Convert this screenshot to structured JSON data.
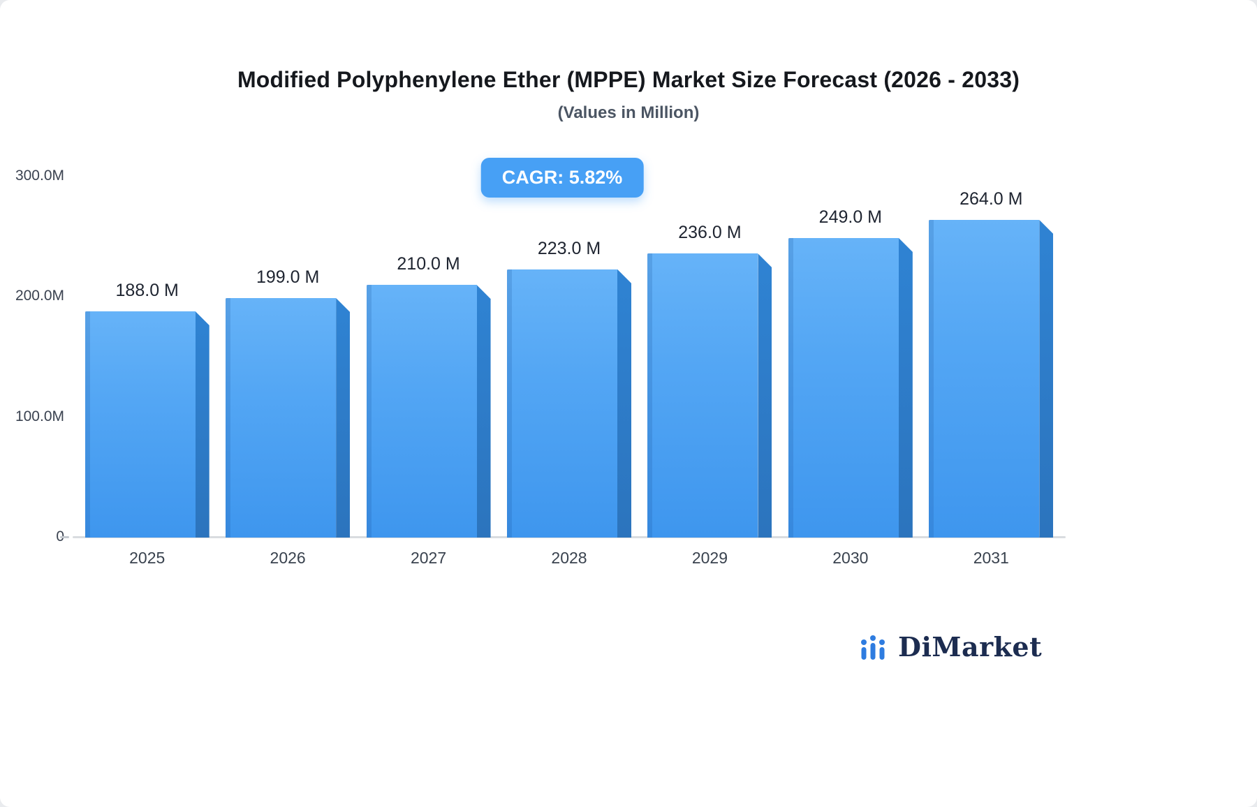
{
  "header": {
    "title": "Modified Polyphenylene Ether (MPPE) Market Size Forecast (2026 - 2033)",
    "subtitle": "(Values in Million)"
  },
  "badge": {
    "label": "CAGR: 5.82%",
    "background": "#47a0f5",
    "text_color": "#ffffff"
  },
  "chart_data": {
    "type": "bar",
    "title": "Modified Polyphenylene Ether (MPPE) Market Size Forecast (2026 - 2033)",
    "subtitle": "(Values in Million)",
    "categories": [
      "2025",
      "2026",
      "2027",
      "2028",
      "2029",
      "2030",
      "2031"
    ],
    "values": [
      188.0,
      199.0,
      210.0,
      223.0,
      236.0,
      249.0,
      264.0
    ],
    "value_labels": [
      "188.0 M",
      "199.0 M",
      "210.0 M",
      "223.0 M",
      "236.0 M",
      "249.0 M",
      "264.0 M"
    ],
    "unit": "Million",
    "xlabel": "",
    "ylabel": "",
    "ylim": [
      0,
      300
    ],
    "yticks": [
      {
        "value": 300,
        "label": "300.0M"
      },
      {
        "value": 200,
        "label": "200.0M"
      },
      {
        "value": 100,
        "label": "100.0M"
      },
      {
        "value": 0,
        "label": "0"
      }
    ],
    "grid": false,
    "legend": "none",
    "bar_color_top": "#66b3f8",
    "bar_color_bottom": "#3e96ee",
    "bar_side_color": "#2d7dc9"
  },
  "logo": {
    "text": "DiMarket",
    "icon": "bar-chart-icon",
    "icon_color": "#2e7ce0",
    "text_color": "#1c2c50"
  }
}
